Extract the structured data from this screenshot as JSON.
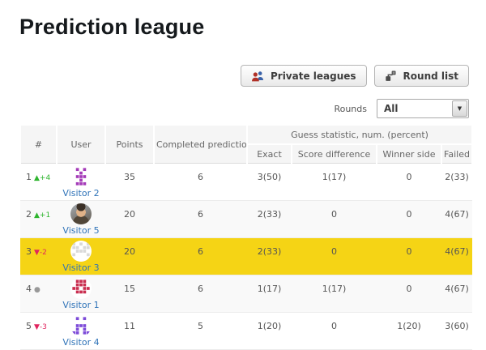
{
  "page": {
    "title": "Prediction league"
  },
  "toolbar": {
    "private_leagues_label": "Private leagues",
    "round_list_label": "Round list"
  },
  "filters": {
    "rounds_label": "Rounds",
    "rounds_value": "All",
    "dropdown_arrow_glyph": "▼"
  },
  "colors": {
    "link": "#2f73b8",
    "highlight_row": "#f5d415",
    "shaded_row": "#f9f9f9",
    "header_bg": "#f5f5f5",
    "trend_up": "#2eb52e",
    "trend_down": "#e0245e",
    "trend_steady": "#999999"
  },
  "trend_glyphs": {
    "up": "▲",
    "down": "▼",
    "steady": "●"
  },
  "table": {
    "headers": {
      "rank": "#",
      "user": "User",
      "points": "Points",
      "completed": "Completed predictions",
      "guess_group": "Guess statistic, num. (percent)",
      "exact": "Exact",
      "score_difference": "Score difference",
      "winner_side": "Winner side",
      "failed": "Failed"
    },
    "rows": [
      {
        "rank": "1",
        "trend": "up",
        "trend_delta": "+4",
        "user": "Visitor 2",
        "avatar": {
          "type": "identicon",
          "color": "#a43ab8",
          "seed": 8
        },
        "points": "35",
        "completed": "6",
        "exact": "3(50)",
        "score_difference": "1(17)",
        "winner_side": "0",
        "failed": "2(33)",
        "highlight": false
      },
      {
        "rank": "2",
        "trend": "up",
        "trend_delta": "+1",
        "user": "Visitor 5",
        "avatar": {
          "type": "photo"
        },
        "points": "20",
        "completed": "6",
        "exact": "2(33)",
        "score_difference": "0",
        "winner_side": "0",
        "failed": "4(67)",
        "highlight": false
      },
      {
        "rank": "3",
        "trend": "down",
        "trend_delta": "-2",
        "user": "Visitor 3",
        "avatar": {
          "type": "identicon",
          "color": "#d9d9d9",
          "seed": 5
        },
        "points": "20",
        "completed": "6",
        "exact": "2(33)",
        "score_difference": "0",
        "winner_side": "0",
        "failed": "4(67)",
        "highlight": true
      },
      {
        "rank": "4",
        "trend": "steady",
        "trend_delta": "",
        "user": "Visitor 1",
        "avatar": {
          "type": "identicon",
          "color": "#c92e50",
          "seed": 11
        },
        "points": "15",
        "completed": "6",
        "exact": "1(17)",
        "score_difference": "1(17)",
        "winner_side": "0",
        "failed": "4(67)",
        "highlight": false
      },
      {
        "rank": "5",
        "trend": "down",
        "trend_delta": "-3",
        "user": "Visitor 4",
        "avatar": {
          "type": "identicon",
          "color": "#7d4bd8",
          "seed": 14
        },
        "points": "11",
        "completed": "5",
        "exact": "1(20)",
        "score_difference": "0",
        "winner_side": "1(20)",
        "failed": "3(60)",
        "highlight": false
      }
    ]
  }
}
